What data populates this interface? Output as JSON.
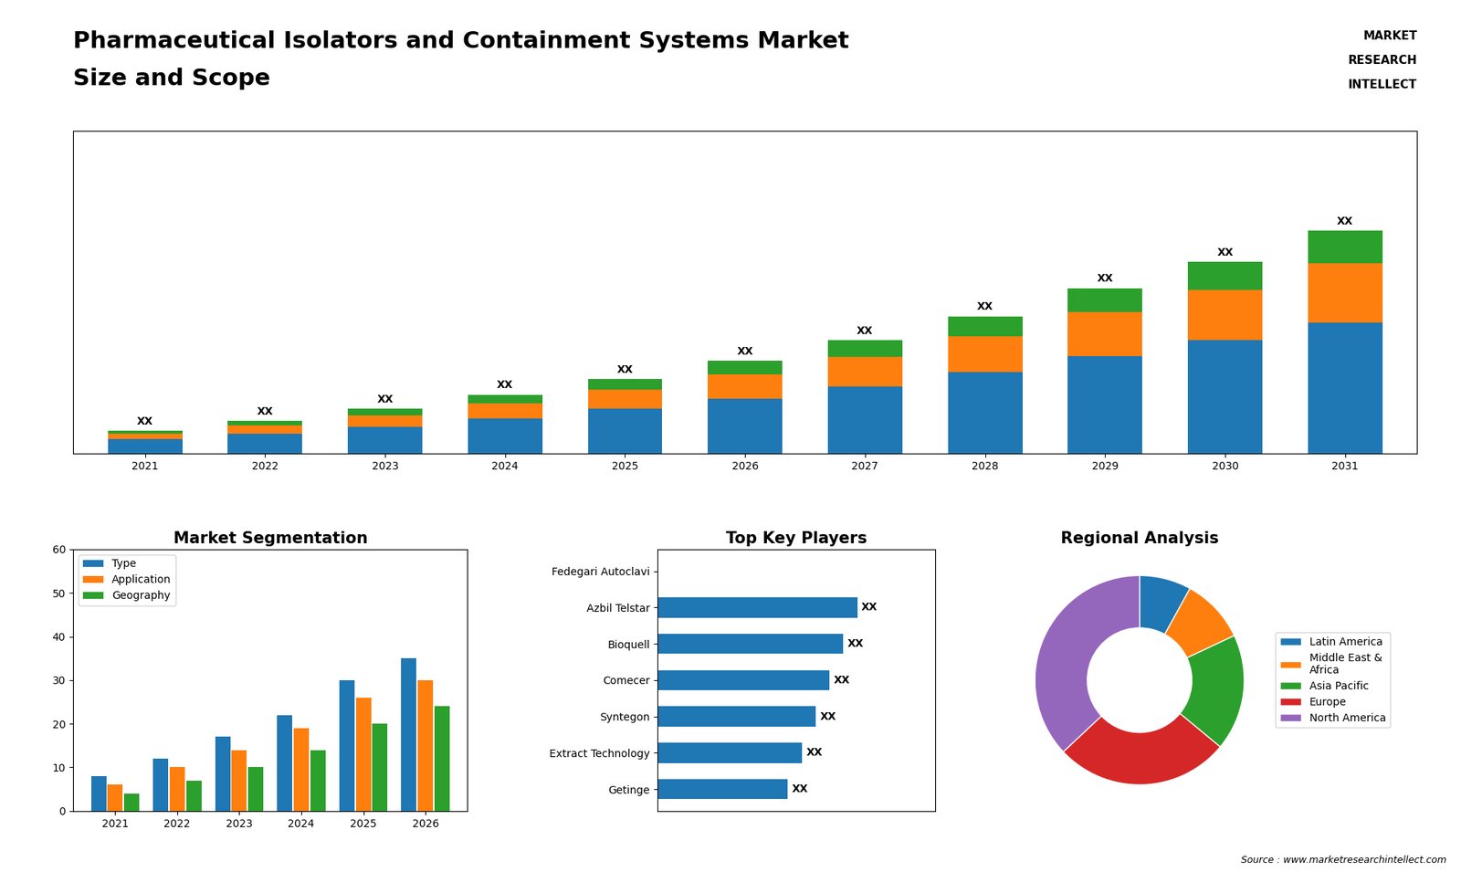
{
  "title": "Pharmaceutical Isolators and Containment Systems Market",
  "subtitle": "Size and Scope",
  "annotations": [
    "MARKET",
    "RESEARCH",
    "INTELLECT",
    "Source : www.marketresearchintellect.com"
  ],
  "chart_data": [
    {
      "type": "bar",
      "stacked": true,
      "categories": [
        "2021",
        "2022",
        "2023",
        "2024",
        "2025",
        "2026",
        "2027",
        "2028",
        "2029",
        "2030",
        "2031"
      ],
      "series": [
        {
          "values": [
            2.0,
            2.8,
            3.8,
            5.0,
            6.3,
            7.8,
            9.5,
            11.5,
            13.8,
            16.0,
            18.5
          ]
        },
        {
          "values": [
            0.8,
            1.2,
            1.6,
            2.1,
            2.7,
            3.4,
            4.2,
            5.1,
            6.2,
            7.2,
            8.4
          ]
        },
        {
          "values": [
            0.4,
            0.6,
            0.9,
            1.2,
            1.5,
            1.9,
            2.3,
            2.8,
            3.4,
            3.9,
            4.6
          ],
          "value_labels": [
            "XX",
            "XX",
            "XX",
            "XX",
            "XX",
            "XX",
            "XX",
            "XX",
            "XX",
            "XX",
            "XX"
          ]
        }
      ],
      "ylim": [
        0,
        45.675
      ],
      "yticks": [],
      "tick_labels": "x",
      "data_labels": true
    },
    {
      "type": "bar",
      "title": "Market Segmentation",
      "categories": [
        "2021",
        "2022",
        "2023",
        "2024",
        "2025",
        "2026"
      ],
      "series": [
        {
          "name": "Type",
          "values": [
            8,
            12,
            17,
            22,
            30,
            35
          ]
        },
        {
          "name": "Application",
          "values": [
            6,
            10,
            14,
            19,
            26,
            30
          ]
        },
        {
          "name": "Geography",
          "values": [
            4,
            7,
            10,
            14,
            20,
            24
          ]
        }
      ],
      "ylim": [
        0,
        60
      ],
      "yticks": [
        0,
        10,
        20,
        30,
        40,
        50,
        60
      ],
      "legend": "upper left"
    },
    {
      "type": "bar",
      "orientation": "horizontal",
      "title": "Top Key Players",
      "categories": [
        "Fedegari Autoclavi",
        "Azbil Telstar",
        "Bioquell",
        "Comecer",
        "Syntegon",
        "Extract Technology",
        "Getinge"
      ],
      "values": [
        0,
        7.2,
        6.7,
        6.2,
        5.7,
        5.2,
        4.7
      ],
      "value_labels": [
        null,
        "XX",
        "XX",
        "XX",
        "XX",
        "XX",
        "XX"
      ],
      "xlim": [
        0,
        10
      ],
      "xticks": [],
      "tick_labels": "y",
      "data_labels": true
    },
    {
      "type": "pie",
      "title": "Regional Analysis",
      "categories": [
        "Latin America",
        "Middle East &\nAfrica",
        "Asia Pacific",
        "Europe",
        "North America"
      ],
      "values": [
        8,
        10,
        18,
        27,
        37
      ],
      "legend": "center left"
    }
  ]
}
